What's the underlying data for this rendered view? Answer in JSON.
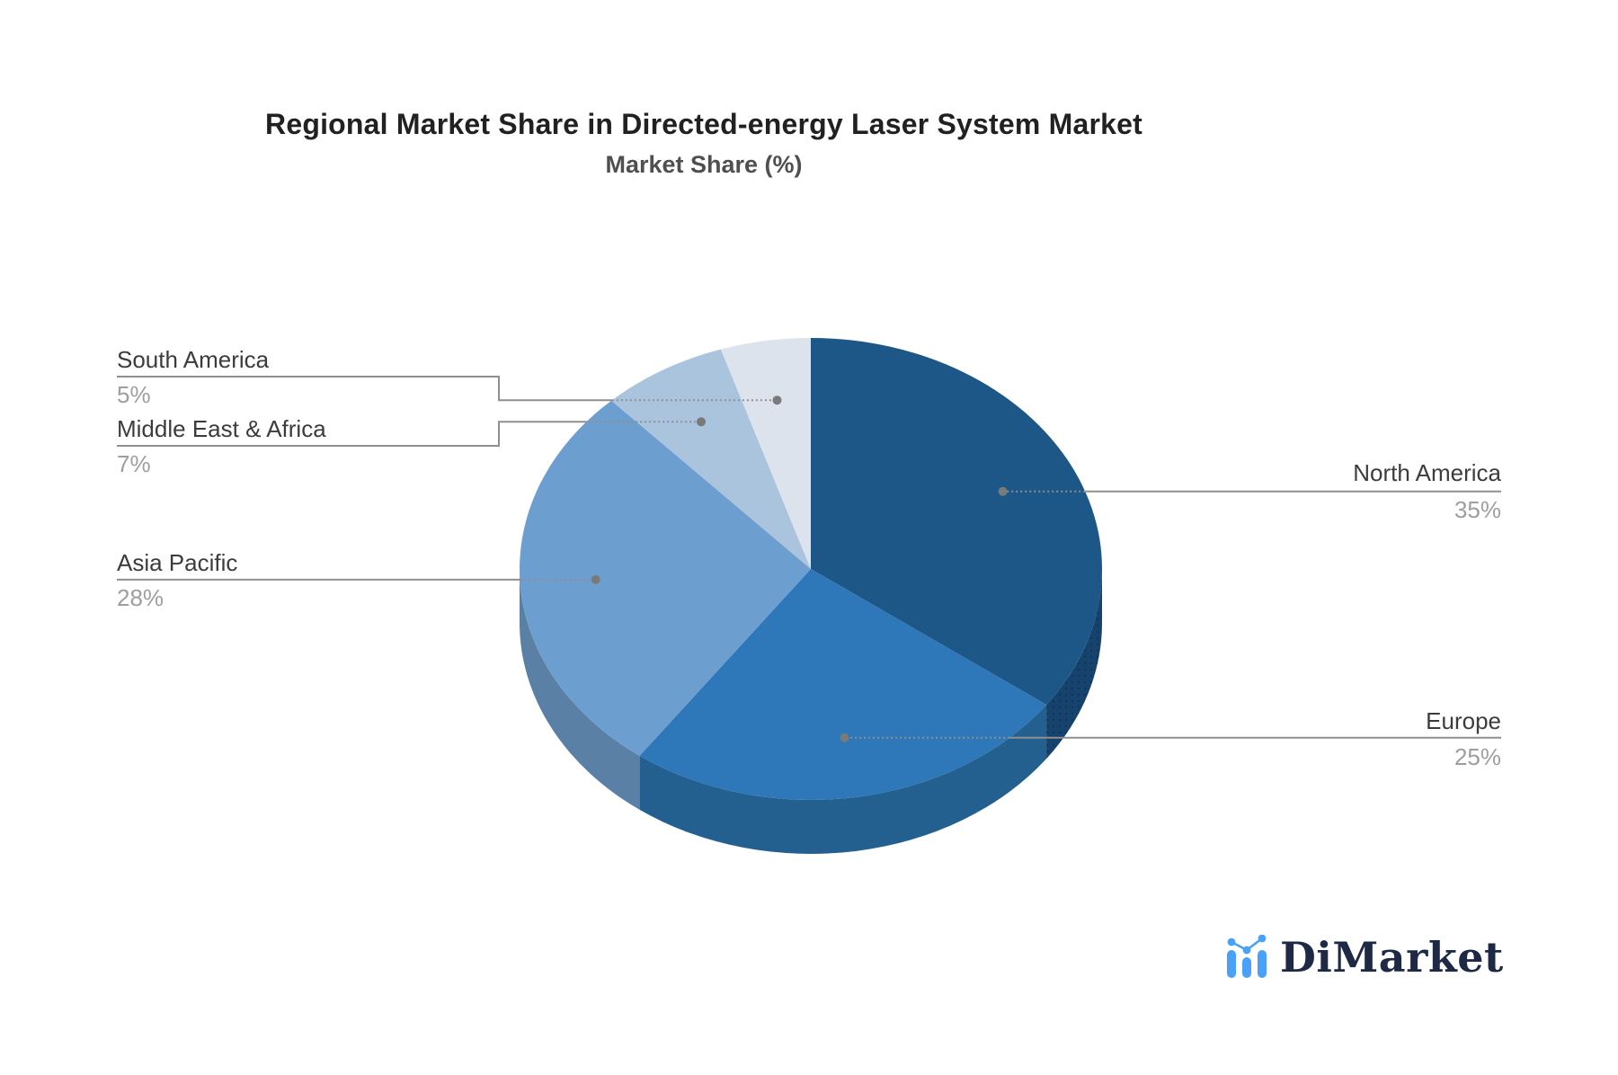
{
  "title": "Regional Market Share in Directed-energy Laser System Market",
  "subtitle": "Market Share (%)",
  "watermark": {
    "brand": "DiMarket",
    "icon": "bar-chart-icon",
    "icon_color": "#4aa2f8",
    "text_color": "#1d2945"
  },
  "chart_data": {
    "type": "pie",
    "title": "Regional Market Share in Directed-energy Laser System Market",
    "subtitle": "Market Share (%)",
    "unit": "%",
    "effect_3d": true,
    "start_angle_deg": 0,
    "direction": "clockwise",
    "legend_position": "none",
    "slices": [
      {
        "label": "North America",
        "value": 35,
        "pct_label": "35%",
        "color": "#1d5787",
        "side_color": "#16436d"
      },
      {
        "label": "Europe",
        "value": 25,
        "pct_label": "25%",
        "color": "#2e77b8",
        "side_color": "#24608f"
      },
      {
        "label": "Asia Pacific",
        "value": 28,
        "pct_label": "28%",
        "color": "#6c9fd0",
        "side_color": "#5a80a6"
      },
      {
        "label": "Middle East & Africa",
        "value": 7,
        "pct_label": "7%",
        "color": "#abc4de",
        "side_color": "#8ba3bd"
      },
      {
        "label": "South America",
        "value": 5,
        "pct_label": "5%",
        "color": "#dde3ed",
        "side_color": "#b8c2d1"
      }
    ],
    "leader_line_color": "#8f8f8f",
    "anchor_dot_color": "#7a7a7a",
    "label_color": "#3c3c3c",
    "value_color": "#9e9e9e"
  }
}
